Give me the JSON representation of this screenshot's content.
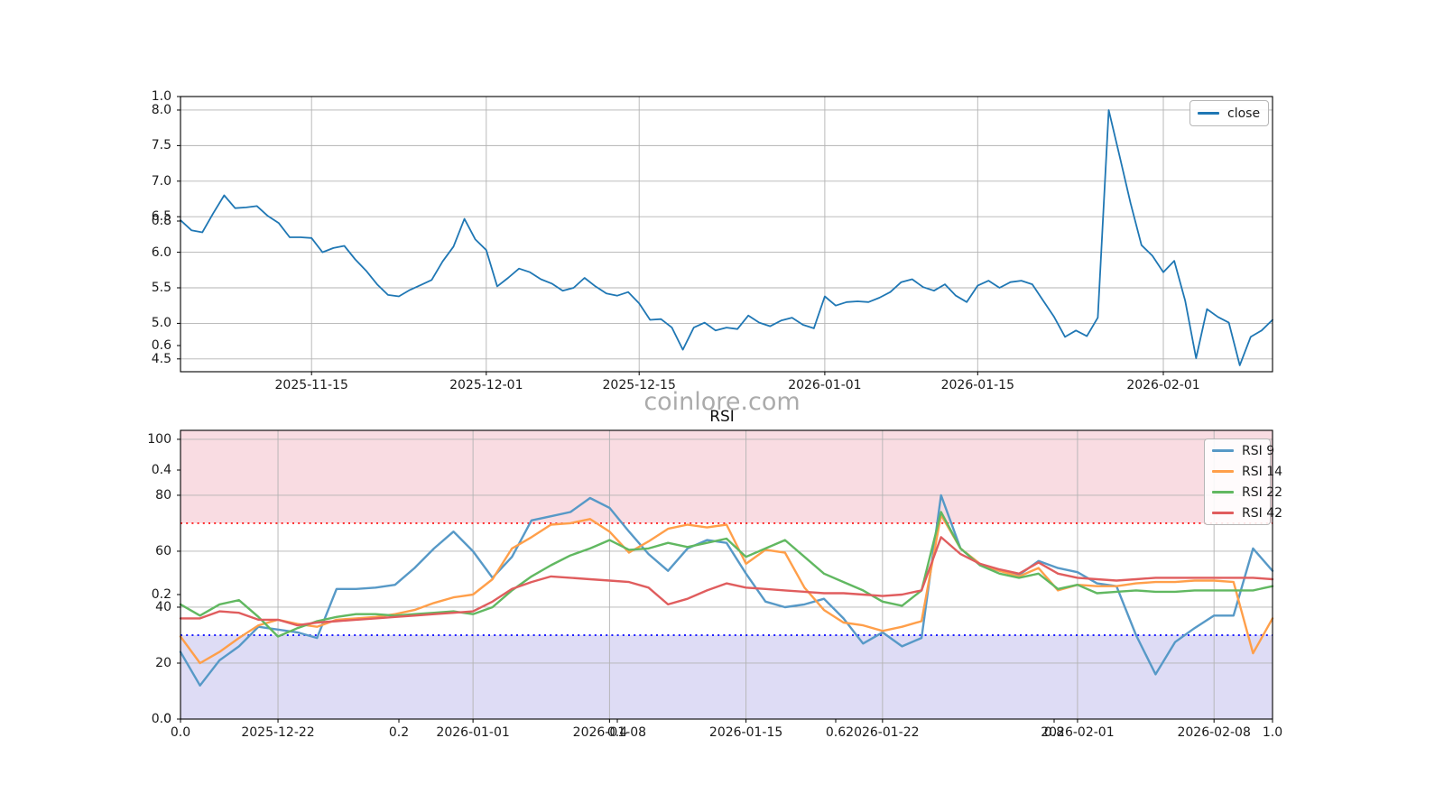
{
  "watermark": "coinlore.com",
  "figure": {
    "background": "#ffffff",
    "grid_color": "#b3b3b3",
    "spine_color": "#000000",
    "text_color": "#1a1a1a"
  },
  "fig_axis": {
    "y_ticks": [
      {
        "f": 1.0,
        "label": "1.0"
      },
      {
        "f": 0.8,
        "label": "0.8"
      },
      {
        "f": 0.6,
        "label": "0.6"
      },
      {
        "f": 0.4,
        "label": "0.4"
      },
      {
        "f": 0.2,
        "label": "0.2"
      },
      {
        "f": 0.0,
        "label": "0.0"
      }
    ],
    "x_ticks": [
      {
        "f": 0.0,
        "label": "0.0"
      },
      {
        "f": 0.2,
        "label": "0.2"
      },
      {
        "f": 0.4,
        "label": "0.4"
      },
      {
        "f": 0.6,
        "label": "0.6"
      },
      {
        "f": 0.8,
        "label": "0.8"
      },
      {
        "f": 1.0,
        "label": "1.0"
      }
    ]
  },
  "chart_data": [
    {
      "type": "line",
      "title": "",
      "xlabel": "",
      "ylabel": "",
      "ylim": [
        4.32,
        8.19
      ],
      "grid": true,
      "legend_position": "upper right",
      "x_start_date": "2025-11-03",
      "x_tick_labels": [
        {
          "i": 12,
          "label": "2025-11-15"
        },
        {
          "i": 28,
          "label": "2025-12-01"
        },
        {
          "i": 42,
          "label": "2025-12-15"
        },
        {
          "i": 59,
          "label": "2026-01-01"
        },
        {
          "i": 73,
          "label": "2026-01-15"
        },
        {
          "i": 90,
          "label": "2026-02-01"
        }
      ],
      "y_ticks": [
        {
          "v": 8.0,
          "label": "8.0"
        },
        {
          "v": 7.5,
          "label": "7.5"
        },
        {
          "v": 7.0,
          "label": "7.0"
        },
        {
          "v": 6.5,
          "label": "6.5"
        },
        {
          "v": 6.0,
          "label": "6.0"
        },
        {
          "v": 5.5,
          "label": "5.5"
        },
        {
          "v": 5.0,
          "label": "5.0"
        },
        {
          "v": 4.5,
          "label": "4.5"
        }
      ],
      "series": [
        {
          "name": "close",
          "color": "#1f77b4",
          "width": 1.8,
          "values": [
            6.45,
            6.31,
            6.28,
            6.55,
            6.8,
            6.62,
            6.63,
            6.65,
            6.51,
            6.41,
            6.21,
            6.21,
            6.2,
            6.0,
            6.06,
            6.09,
            5.9,
            5.74,
            5.55,
            5.4,
            5.38,
            5.47,
            5.54,
            5.61,
            5.87,
            6.08,
            6.47,
            6.18,
            6.03,
            5.52,
            5.64,
            5.77,
            5.72,
            5.62,
            5.56,
            5.46,
            5.5,
            5.64,
            5.52,
            5.42,
            5.39,
            5.44,
            5.28,
            5.05,
            5.06,
            4.94,
            4.63,
            4.94,
            5.01,
            4.9,
            4.94,
            4.92,
            5.11,
            5.01,
            4.96,
            5.04,
            5.08,
            4.98,
            4.93,
            5.38,
            5.25,
            5.3,
            5.31,
            5.3,
            5.36,
            5.44,
            5.58,
            5.62,
            5.51,
            5.46,
            5.55,
            5.39,
            5.3,
            5.53,
            5.6,
            5.5,
            5.58,
            5.6,
            5.55,
            5.32,
            5.09,
            4.81,
            4.9,
            4.82,
            5.08,
            8.0,
            7.35,
            6.69,
            6.1,
            5.95,
            5.72,
            5.88,
            5.32,
            4.51,
            5.2,
            5.09,
            5.01,
            4.41,
            4.81,
            4.9,
            5.05
          ]
        }
      ]
    },
    {
      "type": "line",
      "title": "RSI",
      "xlabel": "",
      "ylabel": "",
      "ylim": [
        0,
        103.2
      ],
      "grid": true,
      "legend_position": "upper right",
      "x_start_date": "2025-12-17",
      "x_tick_labels": [
        {
          "i": 5,
          "label": "2025-12-22"
        },
        {
          "i": 15,
          "label": "2026-01-01"
        },
        {
          "i": 22,
          "label": "2026-01-08"
        },
        {
          "i": 29,
          "label": "2026-01-15"
        },
        {
          "i": 36,
          "label": "2026-01-22"
        },
        {
          "i": 46,
          "label": "2026-02-01"
        },
        {
          "i": 53,
          "label": "2026-02-08"
        }
      ],
      "y_ticks": [
        {
          "v": 100,
          "label": "100"
        },
        {
          "v": 80,
          "label": "80"
        },
        {
          "v": 60,
          "label": "60"
        },
        {
          "v": 40,
          "label": "40"
        },
        {
          "v": 20,
          "label": "20"
        },
        {
          "v": 0,
          "label": "0"
        }
      ],
      "bands": [
        {
          "from": 70,
          "to": 103.2,
          "color": "#f9dce2",
          "meaning": "overbought"
        },
        {
          "from": 0,
          "to": 30,
          "color": "#dedcf5",
          "meaning": "oversold"
        }
      ],
      "thresholds": [
        {
          "value": 70,
          "color": "#ff0000",
          "style": "dotted"
        },
        {
          "value": 30,
          "color": "#0000ff",
          "style": "dotted"
        }
      ],
      "series": [
        {
          "name": "RSI 9",
          "color": "#5799c7",
          "width": 2.4,
          "values": [
            24,
            12,
            21,
            26,
            33,
            32,
            31,
            29,
            46.5,
            46.5,
            47,
            48,
            54,
            61,
            67,
            60,
            50.5,
            58,
            71,
            72.5,
            74,
            79,
            75.5,
            67,
            59,
            53,
            61,
            64,
            63,
            52,
            42,
            40,
            41,
            43,
            36,
            27,
            31,
            26,
            29,
            80,
            61,
            55,
            53,
            51.5,
            56.5,
            54,
            52.5,
            48.5,
            47.5,
            30,
            16,
            27.5,
            32.5,
            37,
            37,
            61,
            53
          ]
        },
        {
          "name": "RSI 14",
          "color": "#ff9f4a",
          "width": 2.4,
          "values": [
            29.5,
            20,
            24,
            29,
            33.5,
            35.5,
            34,
            33,
            35.5,
            36,
            36.5,
            37.5,
            39,
            41.5,
            43.5,
            44.5,
            50,
            61,
            65,
            69.5,
            70,
            71.5,
            67,
            59.5,
            63.5,
            68,
            69.5,
            68.5,
            69.5,
            55.5,
            60.5,
            59.5,
            47,
            39,
            34.5,
            33.5,
            31.5,
            33,
            35,
            73,
            61,
            55.5,
            53,
            51,
            54,
            46,
            48,
            47.5,
            47.5,
            48.5,
            49,
            49,
            49.5,
            49.5,
            49,
            23.5,
            36
          ]
        },
        {
          "name": "RSI 22",
          "color": "#61b861",
          "width": 2.4,
          "values": [
            41,
            37,
            41,
            42.5,
            36.5,
            29.5,
            32.5,
            35,
            36.5,
            37.5,
            37.5,
            37,
            37.5,
            38,
            38.5,
            37.5,
            40,
            46,
            51,
            55,
            58.5,
            61,
            64,
            60.5,
            61,
            63,
            61.5,
            63,
            64.5,
            58,
            61,
            64,
            58,
            52,
            49,
            46,
            42,
            40.5,
            46,
            74,
            61,
            55,
            52,
            50.5,
            52,
            46.5,
            48,
            45,
            45.5,
            46,
            45.5,
            45.5,
            46,
            46,
            46,
            46,
            47.5
          ]
        },
        {
          "name": "RSI 42",
          "color": "#e05d5e",
          "width": 2.4,
          "values": [
            36,
            36,
            38.5,
            38,
            35.5,
            35.5,
            33.5,
            34.5,
            35,
            35.5,
            36,
            36.5,
            37,
            37.5,
            38,
            38.5,
            42,
            46.5,
            49,
            51,
            50.5,
            50,
            49.5,
            49,
            47,
            41,
            43,
            46,
            48.5,
            47,
            46.5,
            46,
            45.5,
            45,
            45,
            44.5,
            44,
            44.5,
            46,
            65,
            59,
            55.5,
            53.5,
            52,
            56,
            52,
            50.5,
            50,
            49.5,
            50,
            50.5,
            50.5,
            50.5,
            50.5,
            50.5,
            50.5,
            50
          ]
        }
      ]
    }
  ]
}
